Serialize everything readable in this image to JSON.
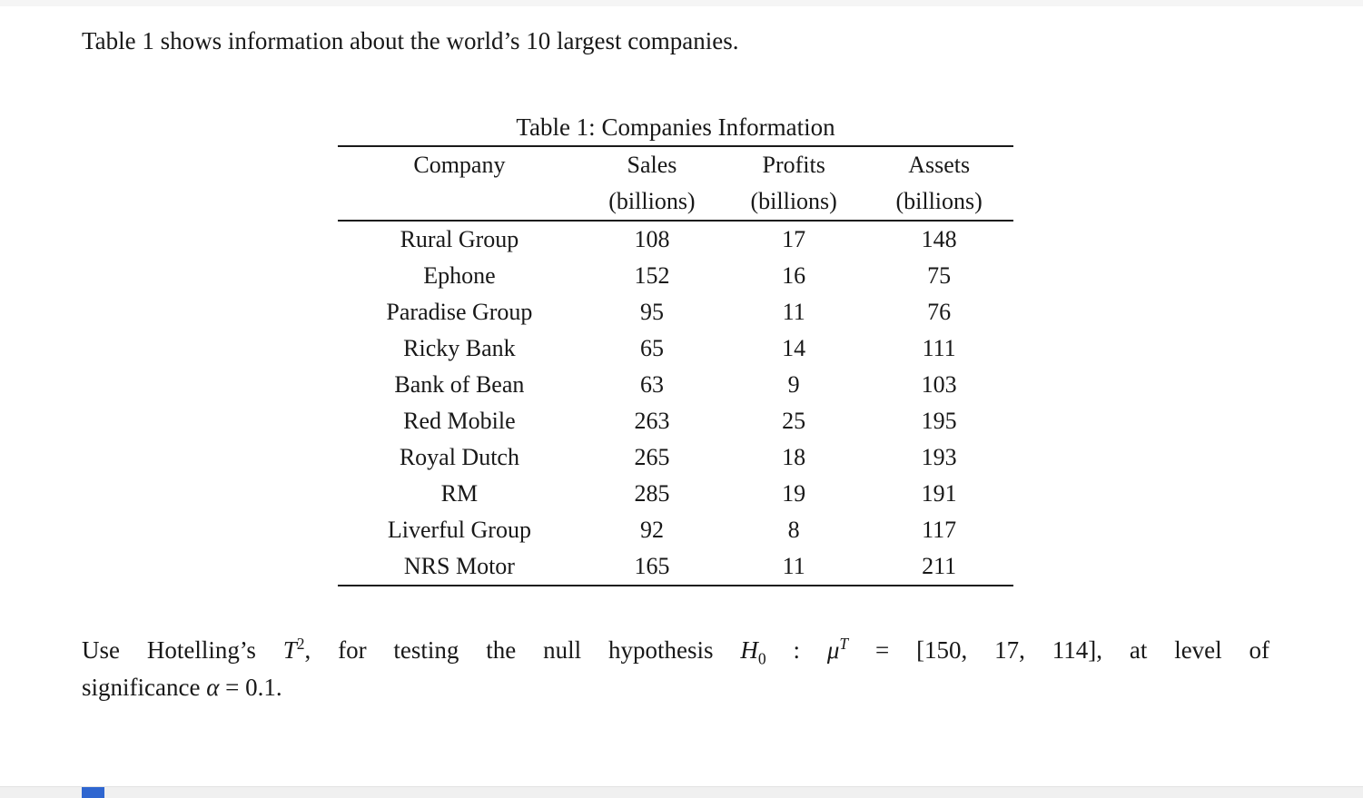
{
  "document": {
    "intro": "Table 1 shows information about the world’s 10 largest companies.",
    "table": {
      "caption": "Table 1: Companies Information",
      "columns": [
        {
          "label": "Company",
          "unit": ""
        },
        {
          "label": "Sales",
          "unit": "(billions)"
        },
        {
          "label": "Profits",
          "unit": "(billions)"
        },
        {
          "label": "Assets",
          "unit": "(billions)"
        }
      ],
      "rows": [
        [
          "Rural Group",
          "108",
          "17",
          "148"
        ],
        [
          "Ephone",
          "152",
          "16",
          "75"
        ],
        [
          "Paradise Group",
          "95",
          "11",
          "76"
        ],
        [
          "Ricky Bank",
          "65",
          "14",
          "111"
        ],
        [
          "Bank of Bean",
          "63",
          "9",
          "103"
        ],
        [
          "Red Mobile",
          "263",
          "25",
          "195"
        ],
        [
          "Royal Dutch",
          "265",
          "18",
          "193"
        ],
        [
          "RM",
          "285",
          "19",
          "191"
        ],
        [
          "Liverful Group",
          "92",
          "8",
          "117"
        ],
        [
          "NRS Motor",
          "165",
          "11",
          "211"
        ]
      ]
    },
    "question": {
      "line1": {
        "t1": "Use Hotelling’s ",
        "T": "T",
        "Tsup": "2",
        "t2": ", for testing the null hypothesis ",
        "H": "H",
        "Hsub": "0",
        "t3": " : ",
        "mu": "μ",
        "musup": "T",
        "t4": " = [150, 17, 114], at level of"
      },
      "line2": {
        "t1": "significance ",
        "alpha": "α",
        "t2": " = 0.1."
      }
    }
  }
}
